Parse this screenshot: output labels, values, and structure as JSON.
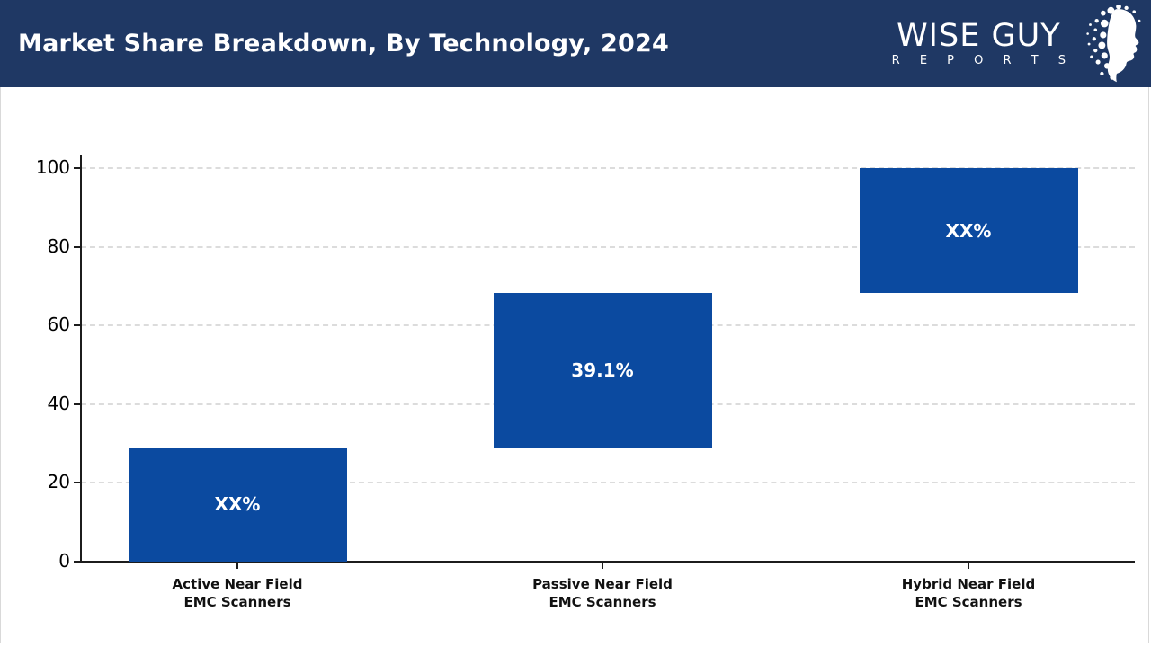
{
  "header": {
    "title": "Market Share Breakdown, By Technology, 2024",
    "bg_color": "#1f3864",
    "logo": {
      "line1": "WISE GUY",
      "line2": "R E P O R T S"
    }
  },
  "watermark": {
    "line1": "WISE GUY",
    "line2": "R E P O R T S"
  },
  "chart_data": {
    "type": "bar",
    "subtype": "floating-waterfall-bars",
    "title": "Market Share Breakdown, By Technology, 2024",
    "xlabel": "",
    "ylabel": "",
    "ylim": [
      0,
      100
    ],
    "yticks": [
      0,
      20,
      40,
      60,
      80,
      100
    ],
    "grid": "horizontal-dashed",
    "legend": "none",
    "bar_color": "#0b4aa0",
    "bar_label_color": "#ffffff",
    "categories": [
      "Active Near Field\nEMC Scanners",
      "Passive Near Field\nEMC Scanners",
      "Hybrid Near Field\nEMC Scanners"
    ],
    "series": [
      {
        "name": "Market Share",
        "segments": [
          {
            "category": "Active Near Field EMC Scanners",
            "start": 0,
            "end": 29.1,
            "label": "XX%"
          },
          {
            "category": "Passive Near Field EMC Scanners",
            "start": 29.1,
            "end": 68.2,
            "label": "39.1%"
          },
          {
            "category": "Hybrid Near Field EMC Scanners",
            "start": 68.2,
            "end": 100,
            "label": "XX%"
          }
        ]
      }
    ]
  }
}
